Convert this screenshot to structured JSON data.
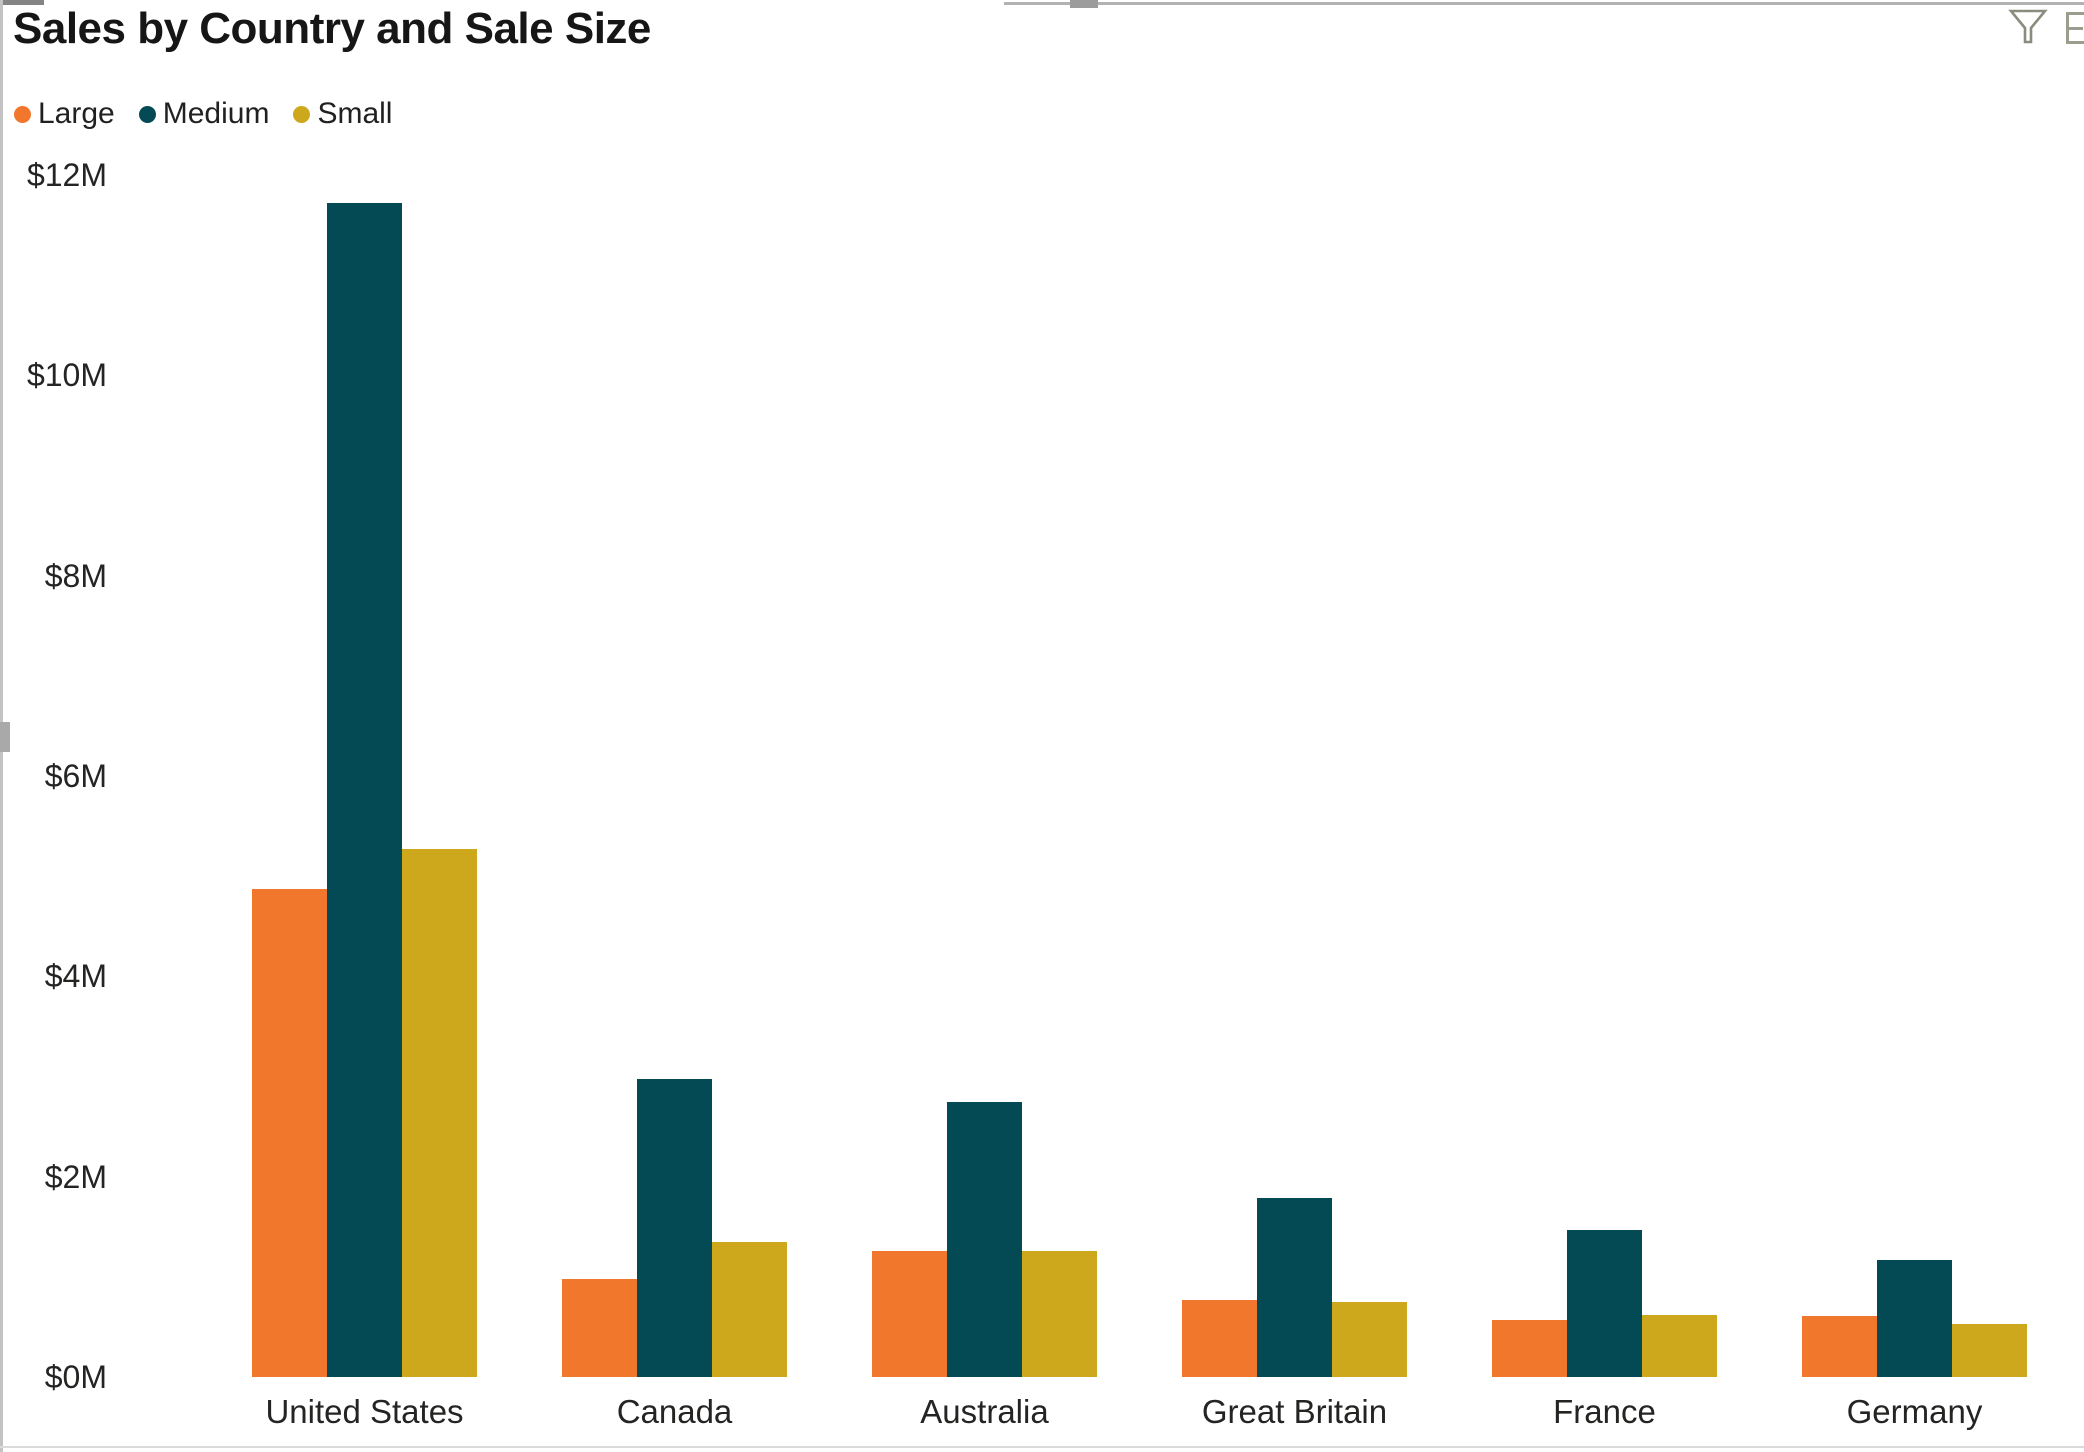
{
  "header": {
    "title": "Sales by Country and Sale Size",
    "icons": [
      {
        "name": "filter",
        "tooltip_glyph": "funnel"
      },
      {
        "name": "options-partial",
        "tooltip_glyph": "clipped-square"
      }
    ]
  },
  "chart_data": {
    "type": "bar",
    "title": "Sales by Country and Sale Size",
    "categories": [
      "United States",
      "Canada",
      "Australia",
      "Great Britain",
      "France",
      "Germany"
    ],
    "series": [
      {
        "name": "Large",
        "color": "#F1772D",
        "values": [
          4.87,
          0.98,
          1.26,
          0.77,
          0.57,
          0.61
        ]
      },
      {
        "name": "Medium",
        "color": "#044A54",
        "values": [
          11.72,
          2.98,
          2.75,
          1.79,
          1.47,
          1.17
        ]
      },
      {
        "name": "Small",
        "color": "#CEA81C",
        "values": [
          5.27,
          1.35,
          1.26,
          0.75,
          0.62,
          0.53
        ]
      }
    ],
    "unit": "$M",
    "xlabel": "",
    "ylabel": "",
    "ylim": [
      0,
      12
    ],
    "y_tick_step": 2,
    "y_ticks": [
      "$0M",
      "$2M",
      "$4M",
      "$6M",
      "$8M",
      "$10M",
      "$12M"
    ],
    "grid": false,
    "legend_position": "top-left"
  }
}
